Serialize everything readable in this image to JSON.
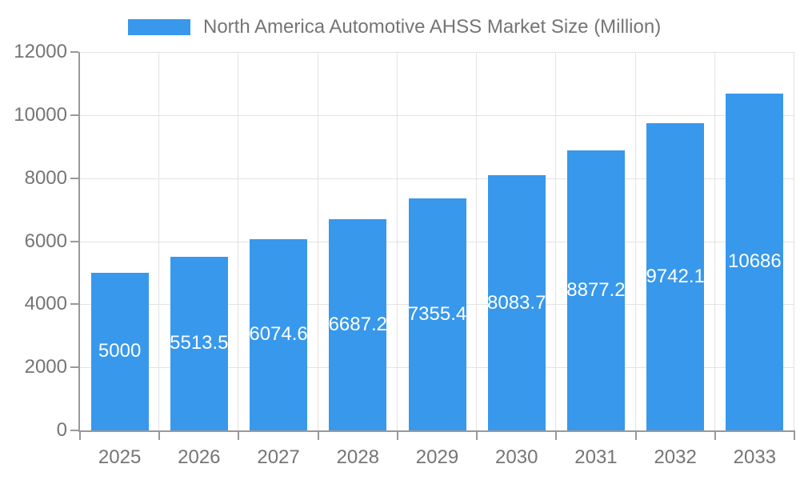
{
  "legend": {
    "label": "North America Automotive AHSS Market Size (Million)"
  },
  "chart_data": {
    "type": "bar",
    "title": "North America Automotive AHSS Market Size (Million)",
    "series_name": "North America Automotive AHSS Market Size (Million)",
    "categories": [
      "2025",
      "2026",
      "2027",
      "2028",
      "2029",
      "2030",
      "2031",
      "2032",
      "2033"
    ],
    "values": [
      5000,
      5513.5,
      6074.6,
      6687.2,
      7355.4,
      8083.7,
      8877.2,
      9742.1,
      10686
    ],
    "data_labels": [
      "5000",
      "5513.5",
      "6074.6",
      "6687.2",
      "7355.4",
      "8083.7",
      "8877.2",
      "9742.1",
      "10686"
    ],
    "xlabel": "",
    "ylabel": "",
    "ylim": [
      0,
      12000
    ],
    "yticks": [
      0,
      2000,
      4000,
      6000,
      8000,
      10000,
      12000
    ],
    "grid": true,
    "legend_position": "top",
    "bar_color": "#3898ec",
    "bar_label_color": "#ffffff",
    "axis_color": "#999999",
    "gridline_color": "#e3e3e3",
    "tick_label_color": "#757575"
  }
}
